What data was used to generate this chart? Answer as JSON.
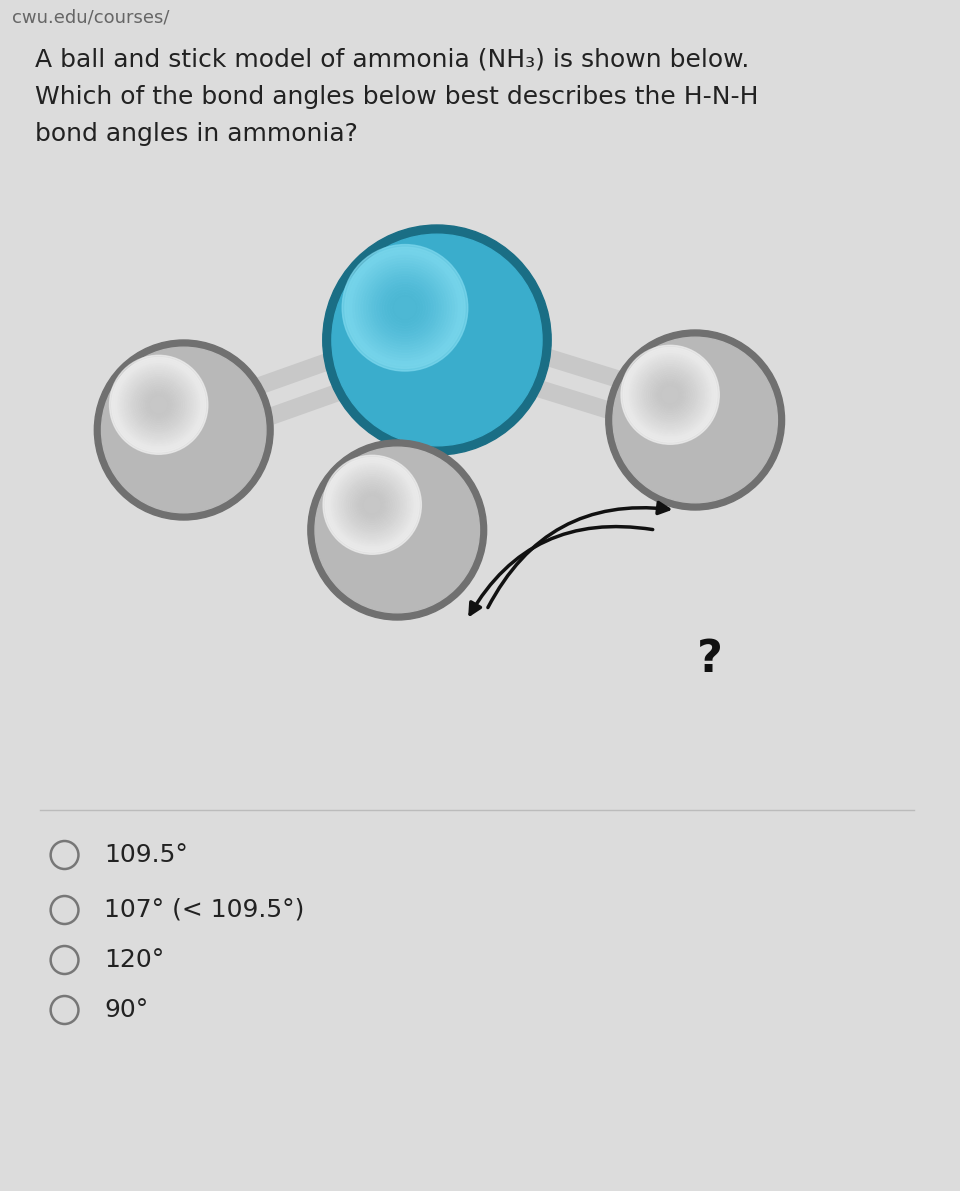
{
  "background_color": "#dcdcdc",
  "header_text": "cwu.edu/courses/",
  "question_line1": "A ball and stick model of ammonia (NH₃) is shown below.",
  "question_line2": "Which of the bond angles below best describes the H-N-H",
  "question_line3": "bond angles in ammonia?",
  "options": [
    "109.5°",
    "107° (< 109.5°)",
    "120°",
    "90°"
  ],
  "nitrogen_color_main": "#3aadcc",
  "nitrogen_color_light": "#7dd8ee",
  "nitrogen_color_dark": "#1a6e85",
  "hydrogen_color_main": "#b8b8b8",
  "hydrogen_color_light": "#f0f0f0",
  "hydrogen_color_dark": "#707070",
  "stick_color": "#c8c8c8",
  "arrow_color": "#111111"
}
